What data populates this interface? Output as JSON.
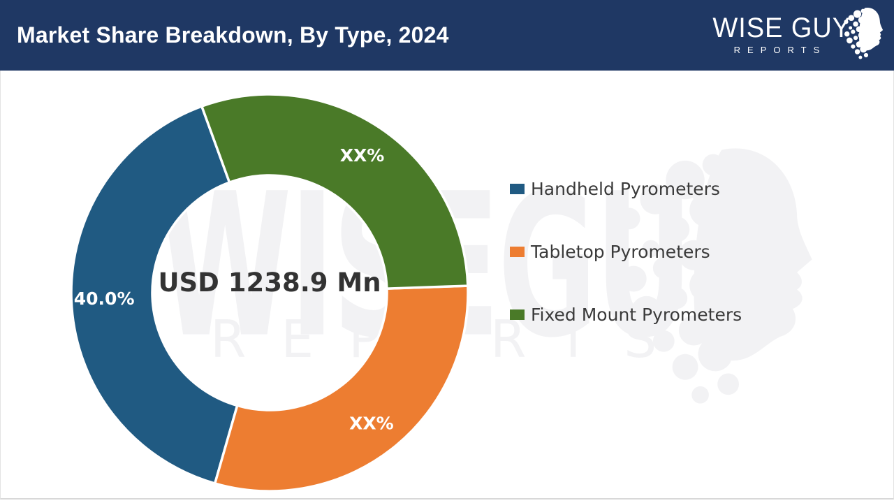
{
  "header": {
    "title": "Market Share Breakdown, By Type, 2024",
    "bg_color": "#1F3864",
    "logo": {
      "name": "WISE GUY",
      "tagline": "REPORTS"
    }
  },
  "watermark": {
    "big_text": "WISEGUY",
    "tagline": "REPORTS"
  },
  "chart_data": {
    "type": "pie",
    "subtype": "donut",
    "title": "Market Share Breakdown, By Type, 2024",
    "center_label": "USD 1238.9 Mn",
    "start_angle_deg": 110,
    "direction": "counterclockwise",
    "legend_position": "right",
    "inner_radius_ratio": 0.59,
    "slices": [
      {
        "label": "Handheld Pyrometers",
        "value": 40.0,
        "display_label": "40.0%",
        "color": "#205A82"
      },
      {
        "label": "Tabletop Pyrometers",
        "value": 30.0,
        "display_label": "XX%",
        "color": "#ED7D31"
      },
      {
        "label": "Fixed Mount Pyrometers",
        "value": 30.0,
        "display_label": "XX%",
        "color": "#4A7A28"
      }
    ]
  }
}
